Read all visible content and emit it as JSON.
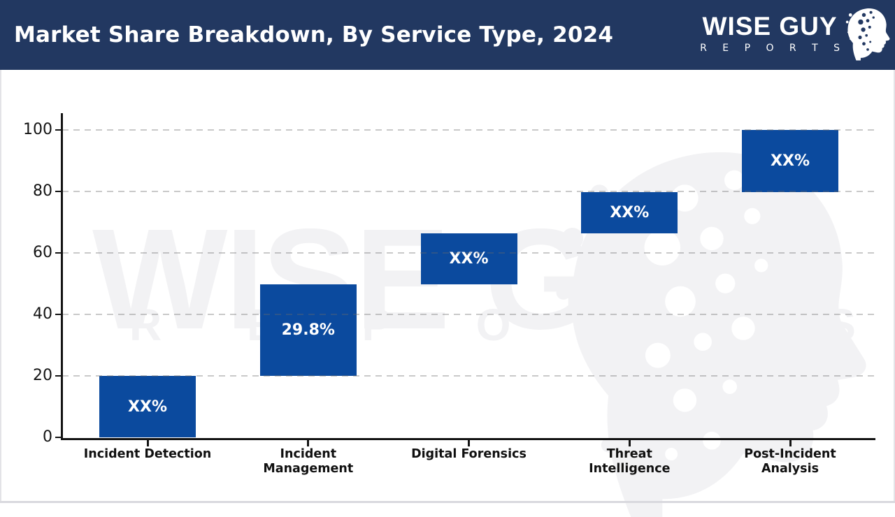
{
  "header": {
    "title": "Market Share Breakdown, By Service Type, 2024",
    "logo": {
      "line1": "WISE GUY",
      "line2": "R E P O R T S"
    }
  },
  "watermark": {
    "line1": "WISE GUY",
    "line2": "R E P O R T S"
  },
  "colors": {
    "header_bg": "#223861",
    "bar": "#0b4a9e",
    "axis": "#141414",
    "grid_dash": "#6e6e6e",
    "watermark": "#f2f2f4",
    "title_text": "#ffffff"
  },
  "chart_data": {
    "type": "bar",
    "subtype": "waterfall",
    "title": "Market Share Breakdown, By Service Type, 2024",
    "categories": [
      "Incident Detection",
      "Incident\nManagement",
      "Digital Forensics",
      "Threat\nIntelligence",
      "Post-Incident\nAnalysis"
    ],
    "bars": [
      {
        "label": "XX%",
        "start": 0,
        "end": 20
      },
      {
        "label": "29.8%",
        "start": 20,
        "end": 49.8
      },
      {
        "label": "XX%",
        "start": 49.8,
        "end": 66.3
      },
      {
        "label": "XX%",
        "start": 66.3,
        "end": 79.7
      },
      {
        "label": "XX%",
        "start": 79.7,
        "end": 100
      }
    ],
    "values_shown": [
      "XX%",
      "29.8%",
      "XX%",
      "XX%",
      "XX%"
    ],
    "yticks": [
      0,
      20,
      40,
      60,
      80,
      100
    ],
    "ylim": [
      0,
      105
    ],
    "xlabel": "",
    "ylabel": "",
    "grid": "dashed-horizontal",
    "legend": "none"
  }
}
